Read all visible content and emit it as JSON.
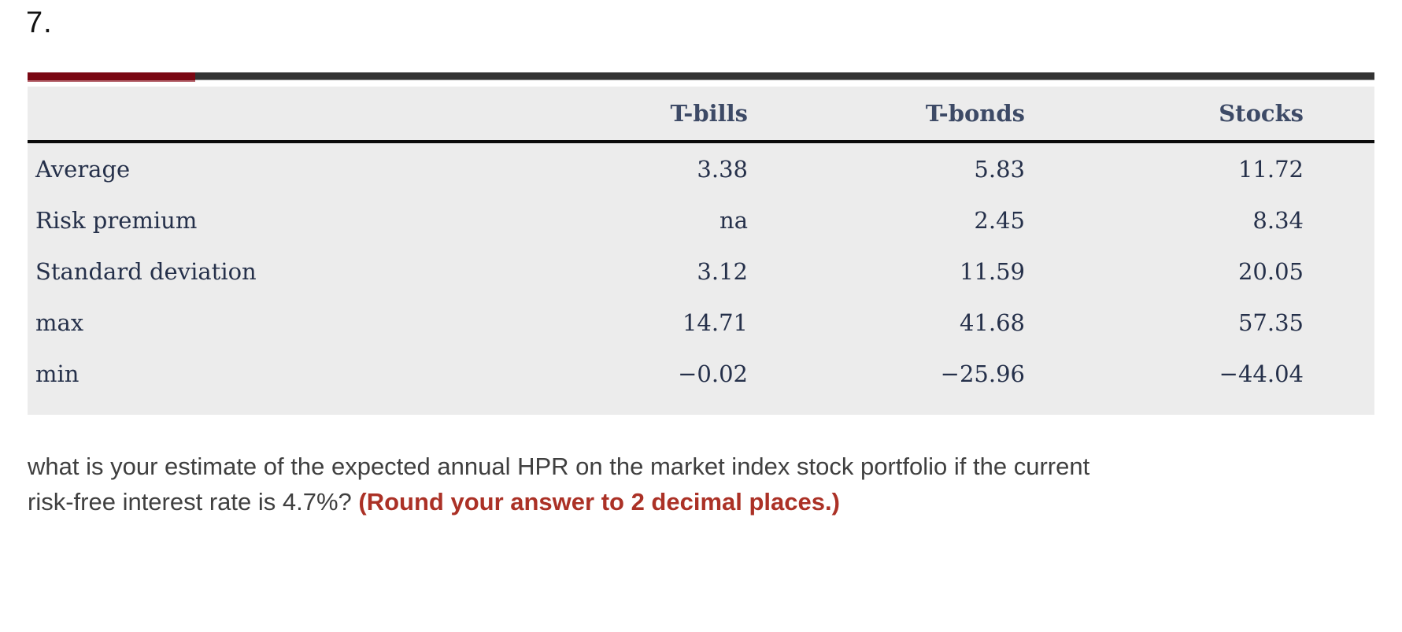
{
  "question_number": "7.",
  "table": {
    "columns": [
      "T-bills",
      "T-bonds",
      "Stocks"
    ],
    "rows": [
      {
        "label": "Average",
        "values": [
          "3.38",
          "5.83",
          "11.72"
        ]
      },
      {
        "label": "Risk premium",
        "values": [
          "na",
          "2.45",
          "8.34"
        ]
      },
      {
        "label": "Standard deviation",
        "values": [
          "3.12",
          "11.59",
          "20.05"
        ]
      },
      {
        "label": "max",
        "values": [
          "14.71",
          "41.68",
          "57.35"
        ]
      },
      {
        "label": "min",
        "values": [
          "−0.02",
          "−25.96",
          "−44.04"
        ]
      }
    ]
  },
  "question": {
    "line1": "what is your estimate of the expected annual HPR on the market index stock portfolio if the current",
    "line2": "risk-free interest rate is 4.7%? ",
    "emphasis": "(Round your answer to 2 decimal places.)"
  },
  "colors": {
    "accent_maroon": "#7a0713",
    "bar_dark": "#333333",
    "table_background": "#ececec",
    "header_text": "#3d4a66",
    "cell_text": "#25304a",
    "question_text": "#3f3f3f",
    "emphasis_red": "#ab3126"
  }
}
